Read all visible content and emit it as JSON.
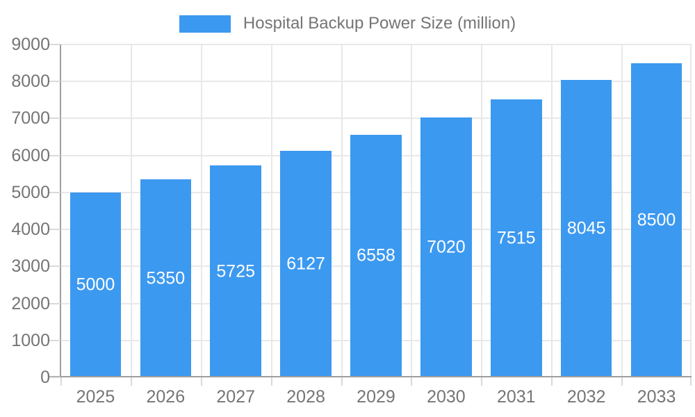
{
  "legend": {
    "label": "Hospital Backup Power Size (million)"
  },
  "colors": {
    "bar": "#3C99F0",
    "bar_label": "#FFFFFF",
    "axis_text": "#757575",
    "legend_text": "#757575",
    "grid": "#E8E8E8",
    "tick": "#D9D9D9",
    "axis_line": "#9E9E9E"
  },
  "chart_data": {
    "type": "bar",
    "title": "Hospital Backup Power Size (million)",
    "series_name": "Hospital Backup Power Size (million)",
    "categories": [
      "2025",
      "2026",
      "2027",
      "2028",
      "2029",
      "2030",
      "2031",
      "2032",
      "2033"
    ],
    "values": [
      5000,
      5350,
      5725,
      6127,
      6558,
      7020,
      7515,
      8045,
      8500
    ],
    "xlabel": "",
    "ylabel": "",
    "ylim": [
      0,
      9000
    ],
    "ytick_step": 1000,
    "ytick_labels": [
      "0",
      "1000",
      "2000",
      "3000",
      "4000",
      "5000",
      "6000",
      "7000",
      "8000",
      "9000"
    ],
    "grid": true,
    "legend_position": "top",
    "bar_value_labels": "inside-center"
  }
}
